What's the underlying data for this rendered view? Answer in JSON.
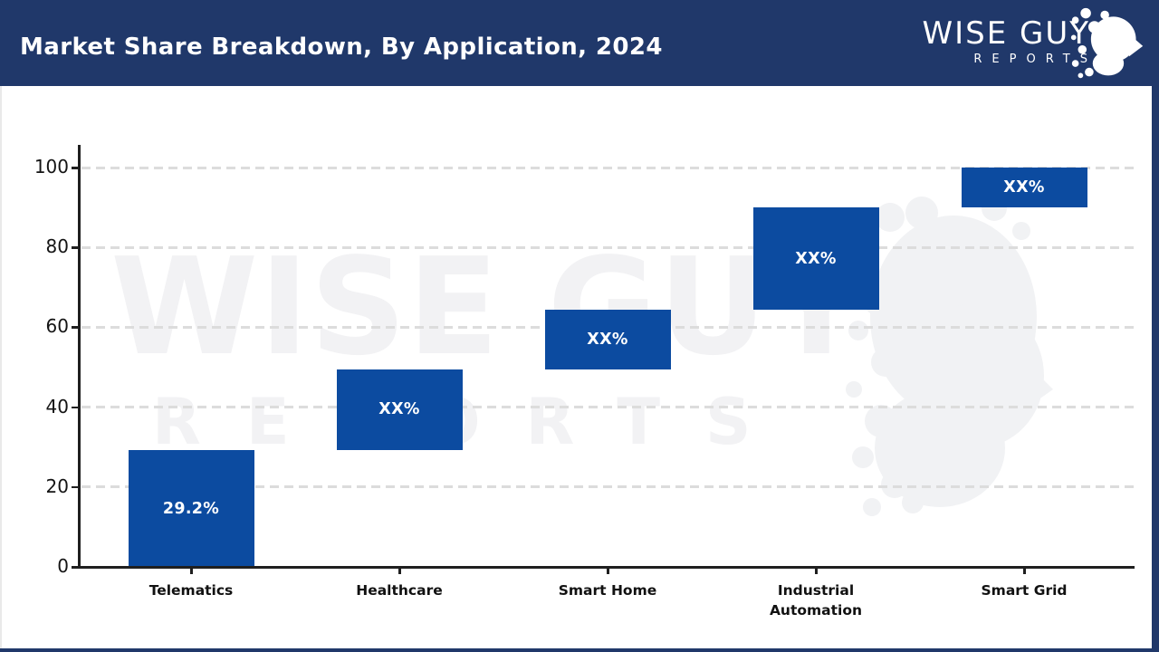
{
  "header": {
    "title": "Market Share Breakdown, By Application, 2024",
    "logo": {
      "primary": "WISE GUY",
      "secondary": "REPORTS"
    }
  },
  "watermark": {
    "primary": "WISE GUY",
    "secondary": "REPORTS"
  },
  "colors": {
    "header_bg": "#20386a",
    "bar": "#0c4ba0",
    "bar_label": "#ffffff",
    "axis": "#1f1f1f",
    "gridline": "#dcdcdc",
    "watermark": "#f2f2f4",
    "title_text": "#ffffff",
    "tick_text": "#141414"
  },
  "chart_data": {
    "type": "bar",
    "variant": "waterfall",
    "title": "Market Share Breakdown, By Application, 2024",
    "xlabel": "",
    "ylabel": "",
    "ylim": [
      0,
      105
    ],
    "yticks": [
      0,
      20,
      40,
      60,
      80,
      100
    ],
    "grid": "horizontal-dashed",
    "legend": "none",
    "categories": [
      "Telematics",
      "Healthcare",
      "Smart Home",
      "Industrial Automation",
      "Smart Grid"
    ],
    "segments": [
      {
        "category": "Telematics",
        "start": 0,
        "end": 29.2,
        "label": "29.2%"
      },
      {
        "category": "Healthcare",
        "start": 29.2,
        "end": 49.5,
        "label": "XX%"
      },
      {
        "category": "Smart Home",
        "start": 49.5,
        "end": 64.3,
        "label": "XX%"
      },
      {
        "category": "Industrial Automation",
        "start": 64.3,
        "end": 90.0,
        "label": "XX%"
      },
      {
        "category": "Smart Grid",
        "start": 90.0,
        "end": 100.0,
        "label": "XX%"
      }
    ]
  }
}
